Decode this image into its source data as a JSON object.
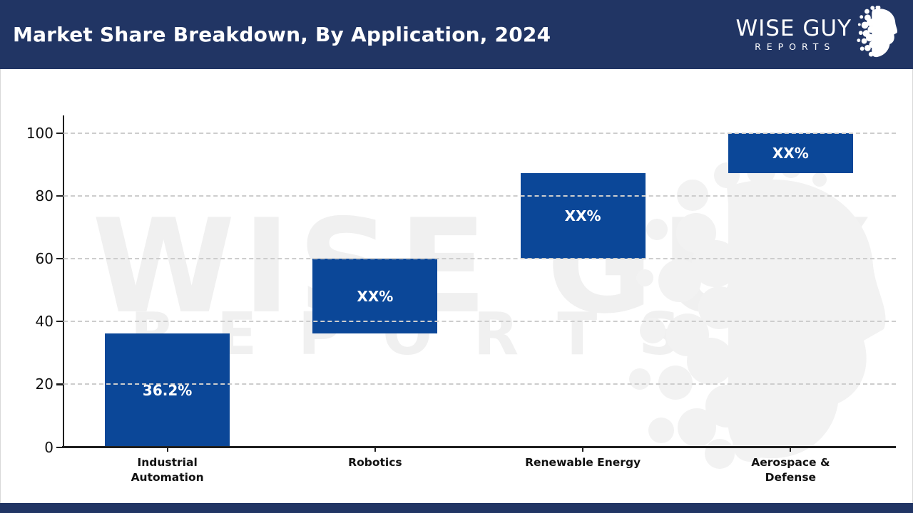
{
  "header": {
    "title": "Market Share Breakdown, By Application, 2024",
    "logo": {
      "line1": "WISE GUY",
      "line2": "REPORTS"
    }
  },
  "watermark": {
    "line1": "WISE GUY",
    "line2": "REPORTS"
  },
  "colors": {
    "header_bg": "#213564",
    "footer_bg": "#213564",
    "bar": "#0b4798",
    "grid": "#cdcdcd",
    "axis": "#1f1f1f",
    "watermark_text": "#f0f0f0",
    "watermark_shape": "#f2f2f2",
    "bar_label": "#ffffff",
    "tick_text": "#111111"
  },
  "chart_data": {
    "type": "bar",
    "subtype": "stacked-waterfall-market-share",
    "title": "Market Share Breakdown, By Application, 2024",
    "categories": [
      "Industrial Automation",
      "Robotics",
      "Renewable Energy",
      "Aerospace & Defense"
    ],
    "category_lines": [
      [
        "Industrial",
        "Automation"
      ],
      [
        "Robotics"
      ],
      [
        "Renewable Energy"
      ],
      [
        "Aerospace &",
        "Defense"
      ]
    ],
    "segments": [
      {
        "category": "Industrial Automation",
        "start": 0,
        "end": 36.2,
        "label": "36.2%"
      },
      {
        "category": "Robotics",
        "start": 36.2,
        "end": 60,
        "label": "XX%"
      },
      {
        "category": "Renewable Energy",
        "start": 60,
        "end": 87.3,
        "label": "XX%"
      },
      {
        "category": "Aerospace & Defense",
        "start": 87.3,
        "end": 100,
        "label": "XX%"
      }
    ],
    "yticks": [
      0,
      20,
      40,
      60,
      80,
      100
    ],
    "ylim": [
      0,
      106
    ],
    "xlabel": "",
    "ylabel": "",
    "grid": "horizontal-dashed",
    "legend": "none",
    "bar_color": "#0b4798",
    "label_color": "#ffffff"
  }
}
